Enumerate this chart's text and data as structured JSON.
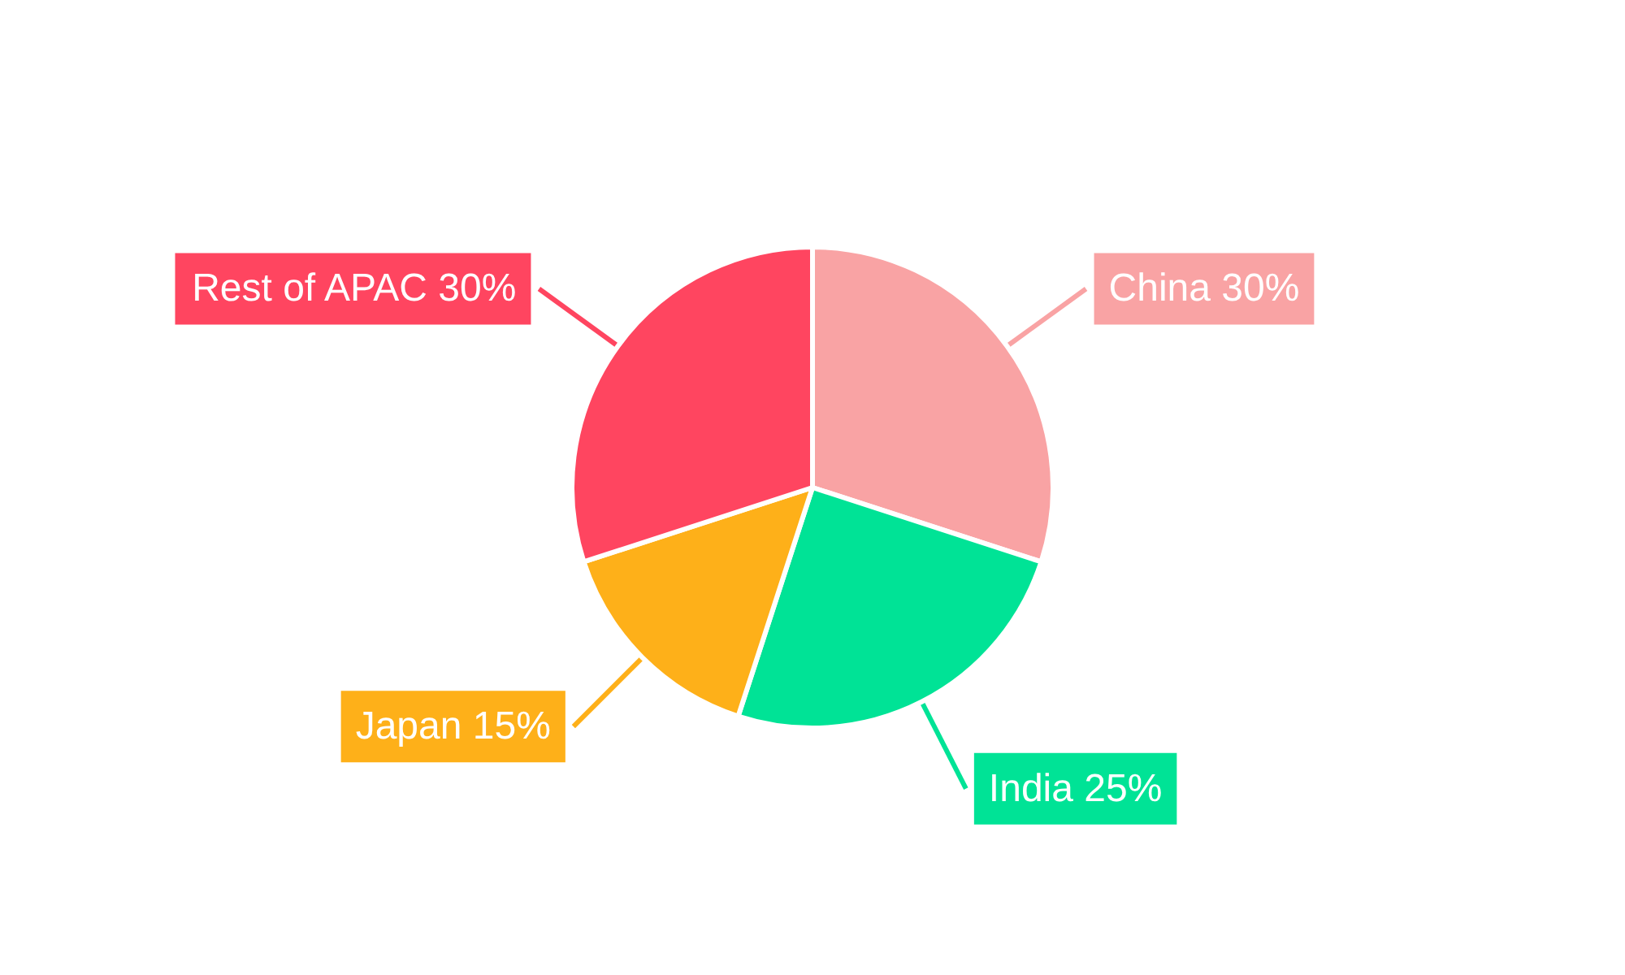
{
  "chart_data": {
    "type": "pie",
    "categories": [
      "China",
      "India",
      "Japan",
      "Rest of APAC"
    ],
    "values": [
      30,
      25,
      15,
      30
    ],
    "colors": [
      "#f9a3a4",
      "#00e396",
      "#feb019",
      "#ff4560"
    ],
    "value_labels": [
      "30%",
      "25%",
      "15%",
      "30%"
    ]
  }
}
